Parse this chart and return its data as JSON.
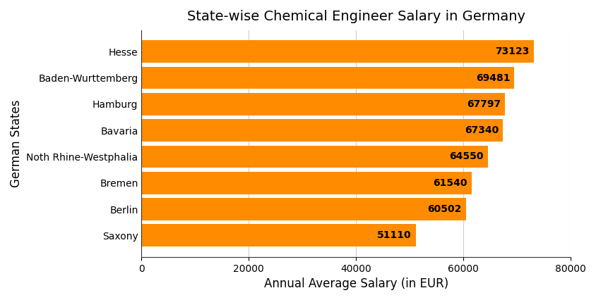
{
  "title": "State-wise Chemical Engineer Salary in Germany",
  "xlabel": "Annual Average Salary (in EUR)",
  "ylabel": "German States",
  "states": [
    "Saxony",
    "Berlin",
    "Bremen",
    "Noth Rhine-Westphalia",
    "Bavaria",
    "Hamburg",
    "Baden-Wurttemberg",
    "Hesse"
  ],
  "salaries": [
    51110,
    60502,
    61540,
    64550,
    67340,
    67797,
    69481,
    73123
  ],
  "bar_color": "#FF8C00",
  "label_color": "#000000",
  "background_color": "#ffffff",
  "xlim": [
    0,
    80000
  ],
  "xticks": [
    0,
    20000,
    40000,
    60000,
    80000
  ],
  "title_fontsize": 14,
  "axis_label_fontsize": 12,
  "tick_fontsize": 10,
  "bar_label_fontsize": 10,
  "bar_height": 0.85
}
